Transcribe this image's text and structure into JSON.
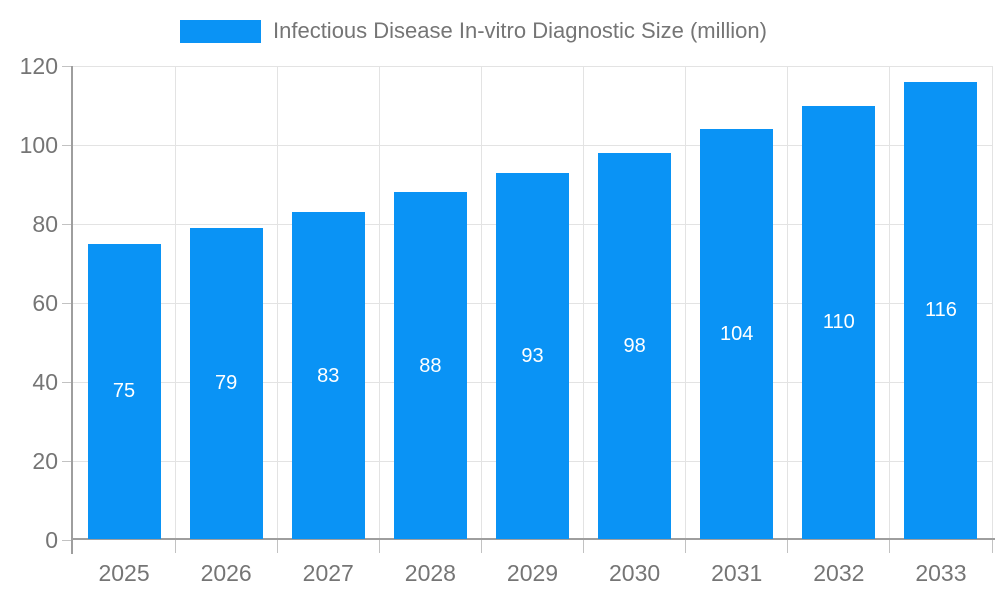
{
  "legend": {
    "label": "Infectious Disease In-vitro Diagnostic Size (million)",
    "swatch_color": "#0a93f5"
  },
  "chart_data": {
    "type": "bar",
    "title": "Infectious Disease In-vitro Diagnostic Size (million)",
    "categories": [
      "2025",
      "2026",
      "2027",
      "2028",
      "2029",
      "2030",
      "2031",
      "2032",
      "2033"
    ],
    "values": [
      75,
      79,
      83,
      88,
      93,
      98,
      104,
      110,
      116
    ],
    "xlabel": "",
    "ylabel": "",
    "ylim": [
      0,
      120
    ],
    "yticks": [
      0,
      20,
      40,
      60,
      80,
      100,
      120
    ],
    "grid": true,
    "legend_position": "top",
    "value_labels": "inside-center",
    "colors": {
      "bar": "#0a93f5",
      "value_label": "#ffffff",
      "axis_text": "#757575",
      "gridline": "#e3e3e3",
      "axis_line": "#9e9e9e",
      "tick_mark": "#c2c2c2",
      "background": "#ffffff"
    }
  }
}
